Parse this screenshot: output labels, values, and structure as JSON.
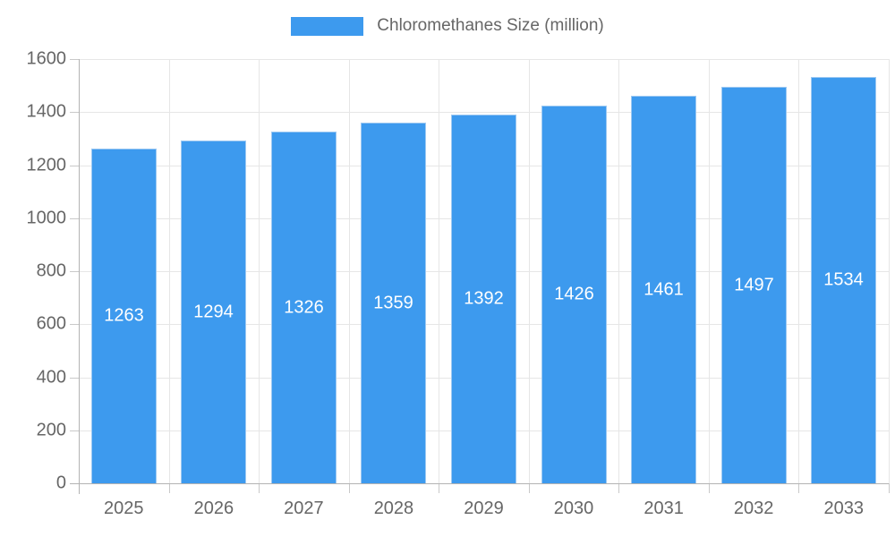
{
  "chart_data": {
    "type": "bar",
    "title": "",
    "legend": [
      {
        "label": "Chloromethanes Size (million)"
      }
    ],
    "legend_position": "top-center",
    "categories": [
      "2025",
      "2026",
      "2027",
      "2028",
      "2029",
      "2030",
      "2031",
      "2032",
      "2033"
    ],
    "series": [
      {
        "name": "Chloromethanes Size (million)",
        "values": [
          1263,
          1294,
          1326,
          1359,
          1392,
          1426,
          1461,
          1497,
          1534
        ]
      }
    ],
    "value_labels_shown": true,
    "xlabel": "",
    "ylabel": "",
    "ylim": [
      0,
      1600
    ],
    "ytick_step": 200,
    "grid": true,
    "colors": {
      "bar": "#3D9AEE",
      "bar_border": "#9DC9F2",
      "grid": "#E6E6E6",
      "axis": "#B3B3B3",
      "tick": "#C9C9C9",
      "text": "#666666",
      "value_label": "#FFFFFF"
    }
  }
}
